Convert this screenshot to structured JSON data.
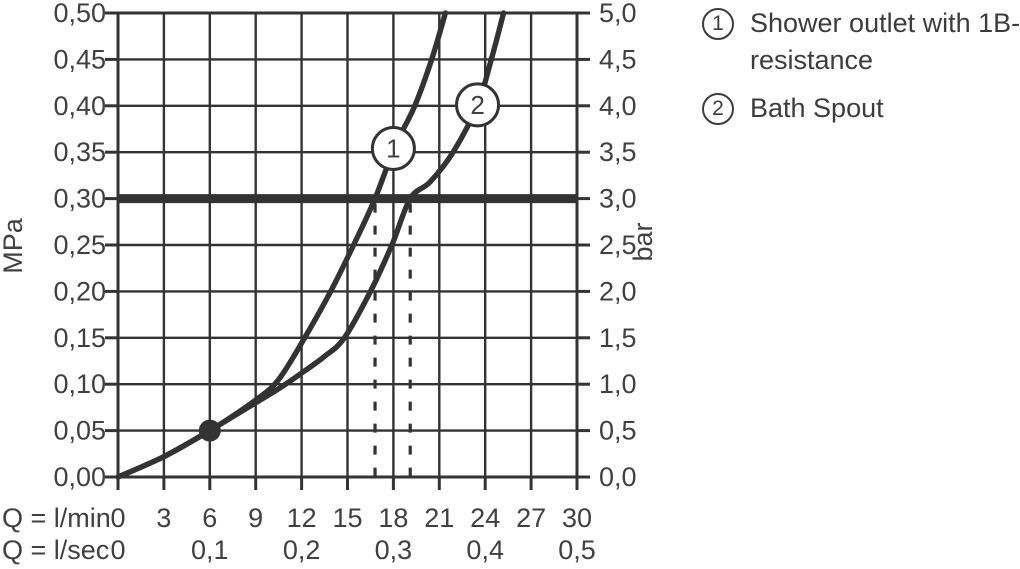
{
  "legend": {
    "items": [
      {
        "marker": "1",
        "label": "Shower outlet with 1B-resistance",
        "lines": [
          "Shower outlet with 1B-",
          "resistance"
        ]
      },
      {
        "marker": "2",
        "label": "Bath Spout",
        "lines": [
          "Bath Spout"
        ]
      }
    ]
  },
  "chart_data": {
    "type": "line",
    "x_axis": {
      "row1_label": "Q = l/min",
      "row2_label": "Q = l/sec",
      "range": [
        0,
        30
      ],
      "row1_ticks": [
        {
          "q": 0,
          "label": "0"
        },
        {
          "q": 3,
          "label": "3"
        },
        {
          "q": 6,
          "label": "6"
        },
        {
          "q": 9,
          "label": "9"
        },
        {
          "q": 12,
          "label": "12"
        },
        {
          "q": 15,
          "label": "15"
        },
        {
          "q": 18,
          "label": "18"
        },
        {
          "q": 21,
          "label": "21"
        },
        {
          "q": 24,
          "label": "24"
        },
        {
          "q": 27,
          "label": "27"
        },
        {
          "q": 30,
          "label": "30"
        }
      ],
      "row2_ticks": [
        {
          "q": 0,
          "label": "0"
        },
        {
          "q": 6,
          "label": "0,1"
        },
        {
          "q": 12,
          "label": "0,2"
        },
        {
          "q": 18,
          "label": "0,3"
        },
        {
          "q": 24,
          "label": "0,4"
        },
        {
          "q": 30,
          "label": "0,5"
        }
      ]
    },
    "y_axis_left": {
      "label": "MPa",
      "range": [
        0,
        0.5
      ],
      "ticks": [
        {
          "mpa": 0.0,
          "label": "0,00"
        },
        {
          "mpa": 0.05,
          "label": "0,05"
        },
        {
          "mpa": 0.1,
          "label": "0,10"
        },
        {
          "mpa": 0.15,
          "label": "0,15"
        },
        {
          "mpa": 0.2,
          "label": "0,20"
        },
        {
          "mpa": 0.25,
          "label": "0,25"
        },
        {
          "mpa": 0.3,
          "label": "0,30"
        },
        {
          "mpa": 0.35,
          "label": "0,35"
        },
        {
          "mpa": 0.4,
          "label": "0,40"
        },
        {
          "mpa": 0.45,
          "label": "0,45"
        },
        {
          "mpa": 0.5,
          "label": "0,50"
        }
      ]
    },
    "y_axis_right": {
      "label": "bar",
      "range": [
        0,
        5
      ],
      "ticks": [
        {
          "bar": 0.0,
          "label": "0,0"
        },
        {
          "bar": 0.5,
          "label": "0,5"
        },
        {
          "bar": 1.0,
          "label": "1,0"
        },
        {
          "bar": 1.5,
          "label": "1,5"
        },
        {
          "bar": 2.0,
          "label": "2,0"
        },
        {
          "bar": 2.5,
          "label": "2,5"
        },
        {
          "bar": 3.0,
          "label": "3,0"
        },
        {
          "bar": 3.5,
          "label": "3,5"
        },
        {
          "bar": 4.0,
          "label": "4,0"
        },
        {
          "bar": 4.5,
          "label": "4,5"
        },
        {
          "bar": 5.0,
          "label": "5,0"
        }
      ]
    },
    "series": [
      {
        "marker": "1",
        "name": "Shower outlet with 1B-resistance",
        "marker_at": {
          "q": 18.0,
          "mpa": 0.354
        },
        "points": [
          [
            0,
            0
          ],
          [
            3,
            0.022
          ],
          [
            6,
            0.05
          ],
          [
            9,
            0.083
          ],
          [
            10.5,
            0.105
          ],
          [
            12.2,
            0.15
          ],
          [
            13.9,
            0.2
          ],
          [
            15.4,
            0.25
          ],
          [
            16.8,
            0.3
          ],
          [
            18.1,
            0.356
          ],
          [
            19.4,
            0.4
          ],
          [
            20.5,
            0.45
          ],
          [
            21.4,
            0.5
          ]
        ]
      },
      {
        "marker": "2",
        "name": "Bath Spout",
        "marker_at": {
          "q": 23.5,
          "mpa": 0.401
        },
        "points": [
          [
            0,
            0
          ],
          [
            3,
            0.022
          ],
          [
            6,
            0.05
          ],
          [
            9,
            0.08
          ],
          [
            10.5,
            0.095
          ],
          [
            12,
            0.112
          ],
          [
            13.5,
            0.13
          ],
          [
            14.8,
            0.15
          ],
          [
            16.5,
            0.2
          ],
          [
            17.9,
            0.25
          ],
          [
            19.1,
            0.3
          ],
          [
            20.4,
            0.318
          ],
          [
            21.9,
            0.35
          ],
          [
            23.5,
            0.401
          ],
          [
            24.4,
            0.45
          ],
          [
            25.2,
            0.5
          ]
        ]
      }
    ],
    "reference_line": {
      "mpa": 0.3,
      "bar": 3.0
    },
    "dashed_guides_q": [
      16.8,
      19.1
    ],
    "dot": {
      "q": 6,
      "mpa": 0.05
    },
    "grid": {
      "x_step_lmin": 3,
      "y_step_mpa": 0.05
    },
    "legend_position": "top-right",
    "colors": {
      "line": "#333333",
      "text": "#404040",
      "background": "#ffffff"
    }
  }
}
